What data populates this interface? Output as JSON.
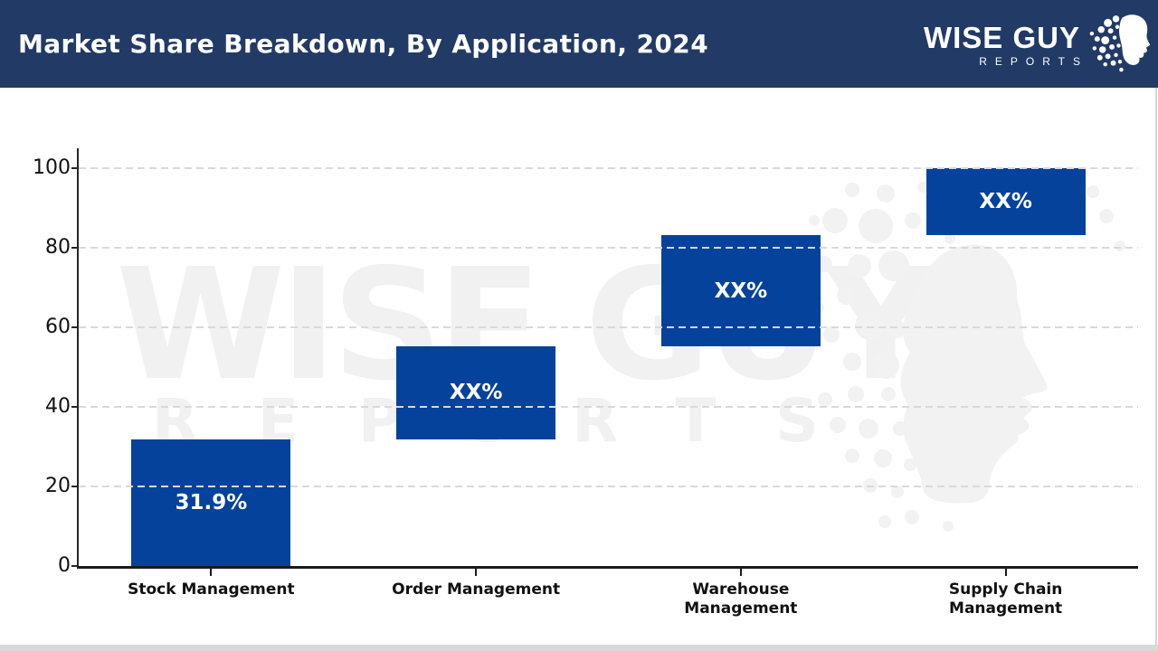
{
  "header": {
    "title": "Market Share Breakdown, By Application, 2024",
    "logo": {
      "wordmark": "WISE GUY",
      "subtext": "REPORTS"
    }
  },
  "watermark": {
    "wordmark": "WISE GUY",
    "subtext": "REPORTS"
  },
  "chart_data": {
    "type": "bar",
    "subtype": "waterfall",
    "title": "Market Share Breakdown, By Application, 2024",
    "categories": [
      "Stock Management",
      "Order Management",
      "Warehouse\nManagement",
      "Supply Chain\nManagement"
    ],
    "segments": [
      {
        "category": "Stock Management",
        "start": 0,
        "end": 31.9,
        "label": "31.9%"
      },
      {
        "category": "Order Management",
        "start": 31.9,
        "end": 55.2,
        "label": "XX%"
      },
      {
        "category": "Warehouse Management",
        "start": 55.2,
        "end": 83.2,
        "label": "XX%"
      },
      {
        "category": "Supply Chain Management",
        "start": 83.2,
        "end": 100,
        "label": "XX%"
      }
    ],
    "xlabel": "",
    "ylabel": "",
    "ylim": [
      0,
      100
    ],
    "yticks": [
      0,
      20,
      40,
      60,
      80,
      100
    ],
    "grid": "horizontal-dashed",
    "legend": "none",
    "bar_color": "#04429c",
    "bar_label_color": "#ffffff"
  },
  "colors": {
    "header_bg": "#213a66",
    "bar": "#04429c",
    "grid": "#d9d9d9",
    "axis": "#1a1a1a",
    "watermark": "#f1f1f1",
    "footer_strip": "#d9d9d9"
  }
}
